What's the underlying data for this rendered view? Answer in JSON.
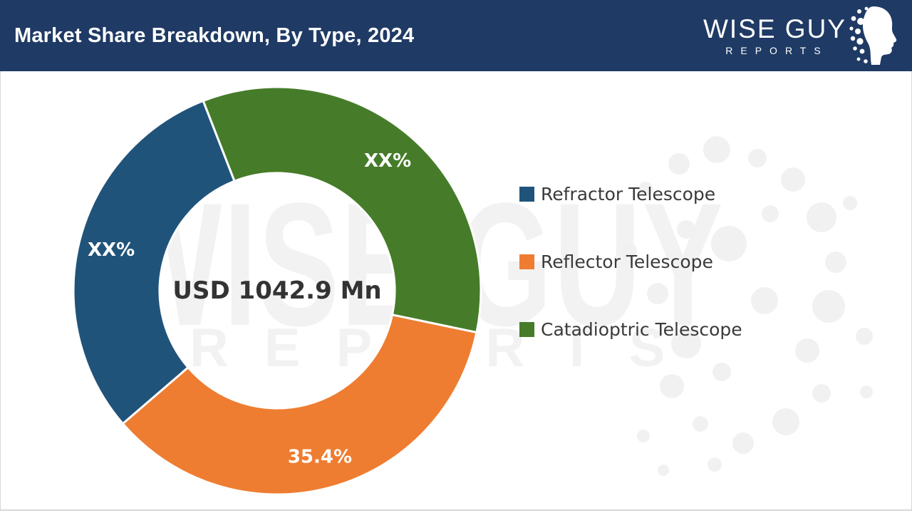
{
  "header": {
    "title": "Market Share Breakdown, By Type, 2024",
    "bg_color": "#1f3a64",
    "logo": {
      "line1": "WISE GUY",
      "line2": "REPORTS"
    }
  },
  "watermark": {
    "line1": "WISE GUY",
    "line2": "REPORTS"
  },
  "chart_data": {
    "type": "pie",
    "donut": true,
    "title": "Market Share Breakdown, By Type, 2024",
    "units": "USD Mn",
    "center_label": "USD 1042.9 Mn",
    "legend_position": "right",
    "start_angle_deg": 338.7,
    "clockwise": true,
    "outer_radius_px": 286,
    "inner_radius_px": 165,
    "label_radius_px": 240,
    "gap_color": "#ffffff",
    "segments": [
      {
        "name": "Catadioptric Telescope",
        "data_label": "XX%",
        "sweep_pct": 34.2,
        "color": "#467c29"
      },
      {
        "name": "Reflector Telescope",
        "data_label": "35.4%",
        "sweep_pct": 35.4,
        "color": "#ee7d31"
      },
      {
        "name": "Refractor Telescope",
        "data_label": "XX%",
        "sweep_pct": 30.4,
        "color": "#20537a"
      }
    ],
    "legend": [
      {
        "label": "Refractor Telescope",
        "color": "#20537a"
      },
      {
        "label": "Reflector Telescope",
        "color": "#ee7d31"
      },
      {
        "label": "Catadioptric Telescope",
        "color": "#467c29"
      }
    ]
  }
}
